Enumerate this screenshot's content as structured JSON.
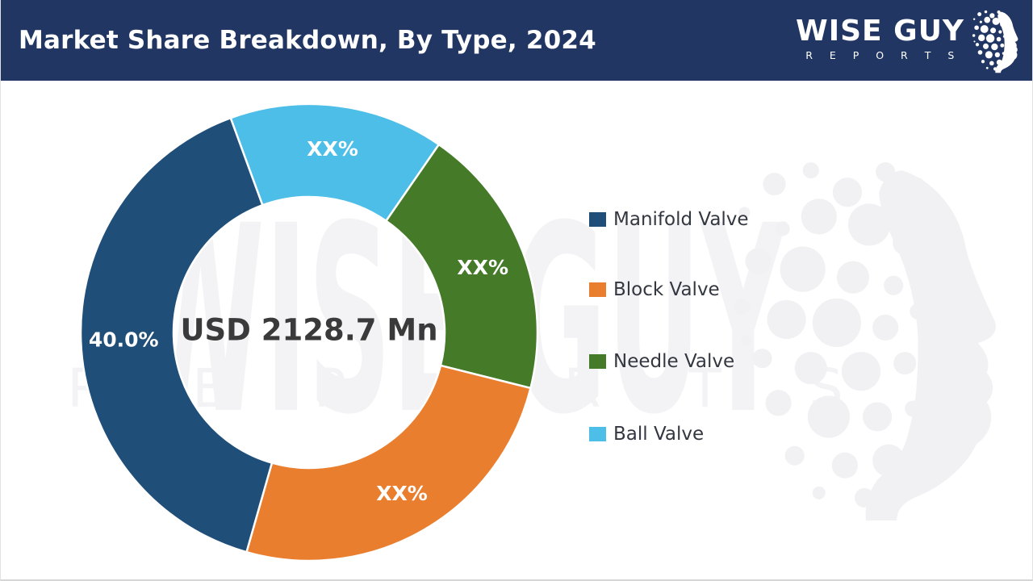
{
  "header": {
    "title": "Market Share Breakdown, By Type, 2024",
    "bg_color": "#213663",
    "logo": {
      "name": "WISE GUY",
      "subtitle": "R E P O R T S",
      "face_icon": "dotted-head-profile"
    }
  },
  "watermark": {
    "line1": "WISE GUY",
    "line2": "R E P O R T S",
    "face_icon": "dotted-head-profile"
  },
  "chart_data": {
    "type": "pie",
    "subtype": "donut",
    "title": "Market Share Breakdown, By Type, 2024",
    "center_label": "USD 2128.7 Mn",
    "start_angle_deg_clockwise_from_north": -20.1,
    "gap_color": "#ffffff",
    "segments": [
      {
        "label": "Ball Valve",
        "value_pct": 15.2,
        "display_label": "XX%",
        "color": "#4CBEE8"
      },
      {
        "label": "Needle Valve",
        "value_pct": 19.3,
        "display_label": "XX%",
        "color": "#447A28"
      },
      {
        "label": "Block Valve",
        "value_pct": 25.5,
        "display_label": "XX%",
        "color": "#E97E2E"
      },
      {
        "label": "Manifold Valve",
        "value_pct": 40.0,
        "display_label": "40.0%",
        "color": "#1F4E78"
      }
    ],
    "legend_position": "right",
    "legend": [
      {
        "label": "Manifold Valve",
        "color": "#1F4E78"
      },
      {
        "label": "Block Valve",
        "color": "#E97E2E"
      },
      {
        "label": "Needle Valve",
        "color": "#447A28"
      },
      {
        "label": "Ball Valve",
        "color": "#4CBEE8"
      }
    ],
    "label_text_color": "#ffffff",
    "center_text_color": "#3a3a3a"
  }
}
